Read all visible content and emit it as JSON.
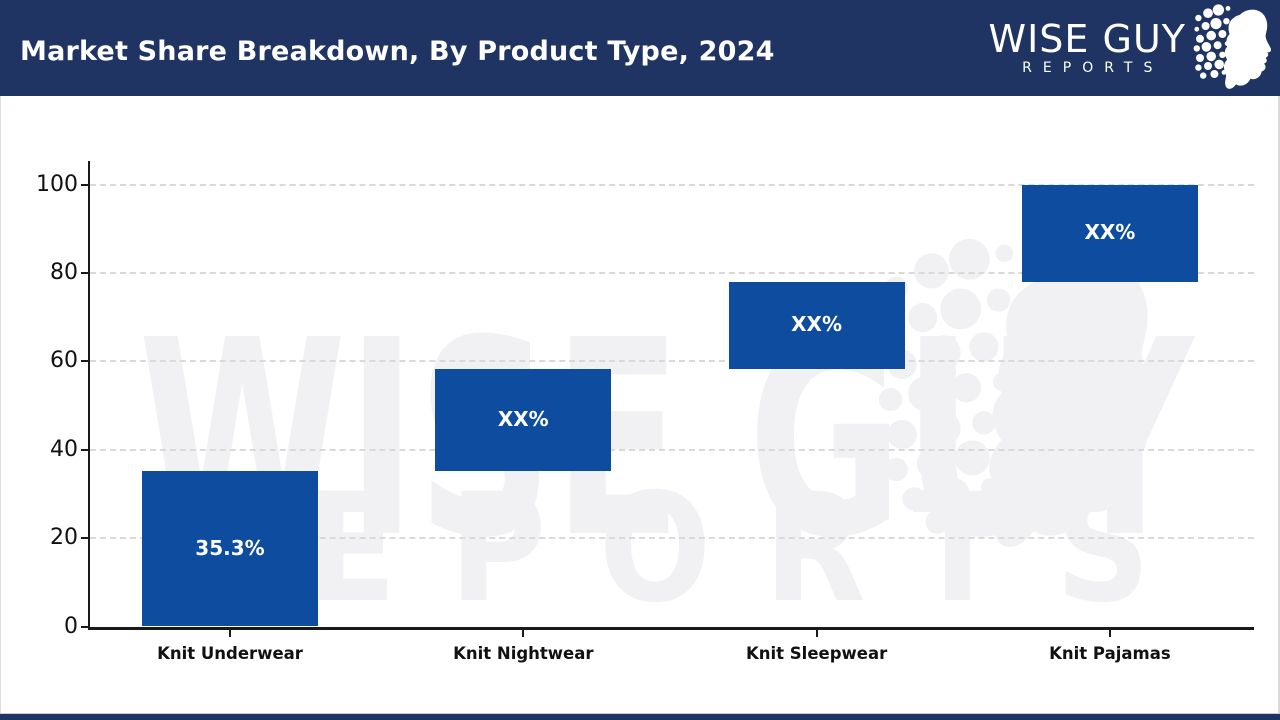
{
  "header": {
    "title": "Market Share Breakdown, By Product Type, 2024",
    "logo": {
      "line1": "WISE GUY",
      "line2": "REPORTS"
    }
  },
  "watermark": {
    "line1": "WISE GUY",
    "line2": "REPORTS"
  },
  "colors": {
    "header_bg": "#1f3462",
    "bar": "#0d4c9f",
    "gridline": "#d9d9d9",
    "axis": "#1a1a1a",
    "watermark": "#f1f1f4",
    "bar_label": "#ffffff"
  },
  "chart_data": {
    "type": "bar",
    "subtype": "waterfall",
    "title": "Market Share Breakdown, By Product Type, 2024",
    "categories": [
      "Knit Underwear",
      "Knit Nightwear",
      "Knit Sleepwear",
      "Knit Pajamas"
    ],
    "series": [
      {
        "name": "Market Share",
        "segments": [
          {
            "start": 0,
            "end": 35.3,
            "label": "35.3%"
          },
          {
            "start": 35.3,
            "end": 58.3,
            "label": "XX%"
          },
          {
            "start": 58.3,
            "end": 78.0,
            "label": "XX%"
          },
          {
            "start": 78.0,
            "end": 100.0,
            "label": "XX%"
          }
        ]
      }
    ],
    "xlabel": "",
    "ylabel": "",
    "yticks": [
      0,
      20,
      40,
      60,
      80,
      100
    ],
    "ylim": [
      0,
      105.5
    ],
    "grid": "dashed-horizontal",
    "legend": "none"
  }
}
